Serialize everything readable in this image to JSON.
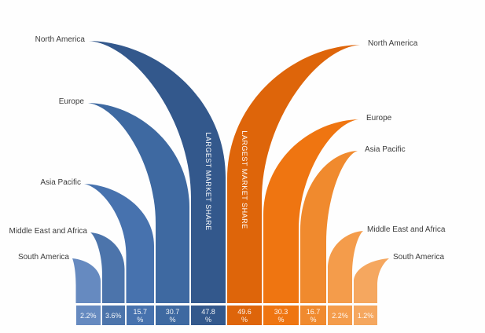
{
  "colors": {
    "background": "#fefefe",
    "label_text": "#3c3c3c",
    "banner_text": "#ffffff",
    "blue_dark": "#33588c",
    "orange_dark": "#de650a"
  },
  "center_banners": [
    {
      "text": "LARGEST MARKET SHARE",
      "side": "left"
    },
    {
      "text": "LARGEST MARKET SHARE",
      "side": "right"
    }
  ],
  "chart_data": {
    "type": "bar",
    "variant": "mirrored-funnel-swoosh",
    "title": "",
    "categories": [
      "North America",
      "Europe",
      "Asia Pacific",
      "Middle East and Africa",
      "South America"
    ],
    "series": [
      {
        "name": "left-blue",
        "values": [
          47.8,
          30.7,
          15.7,
          3.6,
          2.2
        ]
      },
      {
        "name": "right-orange",
        "values": [
          49.6,
          30.3,
          16.7,
          2.2,
          1.2
        ]
      }
    ],
    "value_unit": "%",
    "annotations": [
      "LARGEST MARKET SHARE",
      "LARGEST MARKET SHARE"
    ],
    "legend_position": "none",
    "grid": false
  },
  "segments": [
    {
      "side": "left",
      "region": "South America",
      "value": 2.2,
      "display_line1": "2.2%",
      "display_line2": "",
      "color": "#668ac0"
    },
    {
      "side": "left",
      "region": "Middle East and Africa",
      "value": 3.6,
      "display_line1": "3.6%",
      "display_line2": "",
      "color": "#4c74ab"
    },
    {
      "side": "left",
      "region": "Asia Pacific",
      "value": 15.7,
      "display_line1": "15.7",
      "display_line2": "%",
      "color": "#4772ae"
    },
    {
      "side": "left",
      "region": "Europe",
      "value": 30.7,
      "display_line1": "30.7",
      "display_line2": "%",
      "color": "#3e69a1"
    },
    {
      "side": "left",
      "region": "North America",
      "value": 47.8,
      "display_line1": "47.8",
      "display_line2": "%",
      "color": "#33588c"
    },
    {
      "side": "right",
      "region": "North America",
      "value": 49.6,
      "display_line1": "49.6",
      "display_line2": "%",
      "color": "#de650a"
    },
    {
      "side": "right",
      "region": "Europe",
      "value": 30.3,
      "display_line1": "30.3",
      "display_line2": "%",
      "color": "#ef7511"
    },
    {
      "side": "right",
      "region": "Asia Pacific",
      "value": 16.7,
      "display_line1": "16.7",
      "display_line2": "%",
      "color": "#f08a2e"
    },
    {
      "side": "right",
      "region": "Middle East and Africa",
      "value": 2.2,
      "display_line1": "2.2%",
      "display_line2": "",
      "color": "#f49c4b"
    },
    {
      "side": "right",
      "region": "South America",
      "value": 1.2,
      "display_line1": "1.2%",
      "display_line2": "",
      "color": "#f5a75f"
    }
  ]
}
